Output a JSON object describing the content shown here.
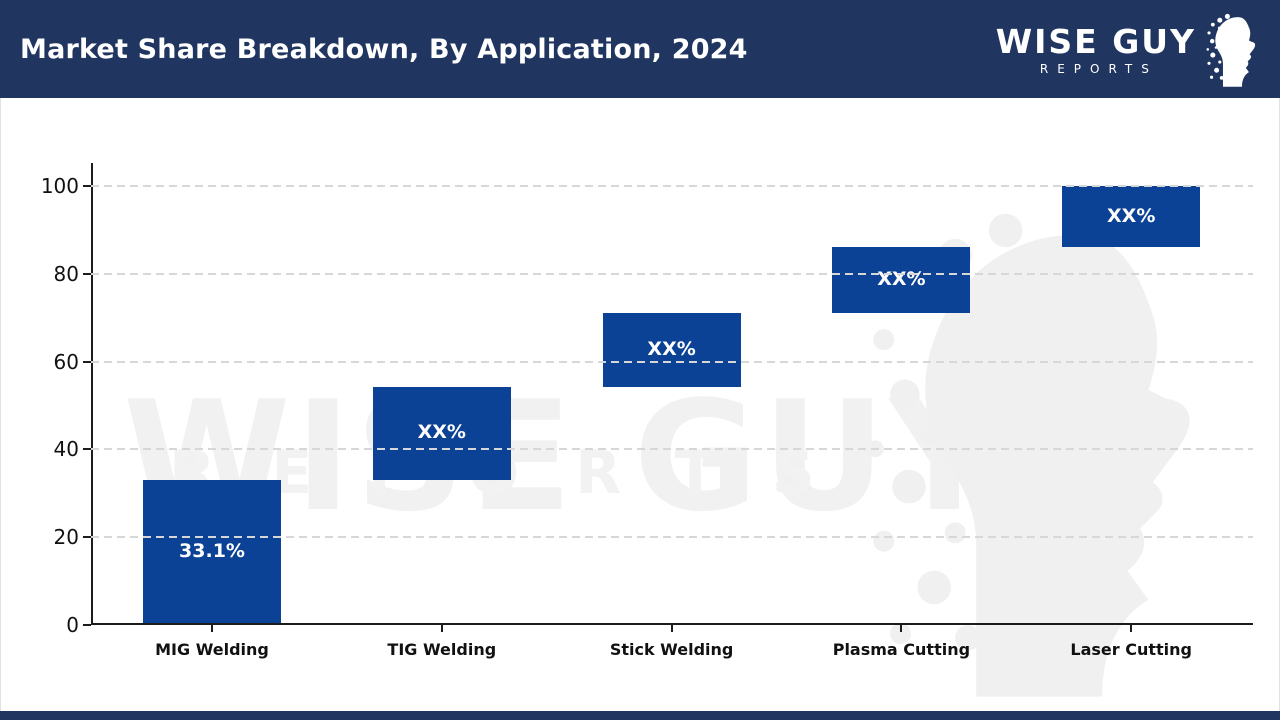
{
  "header": {
    "title": "Market Share Breakdown, By Application, 2024",
    "logo_line1": "WISE GUY",
    "logo_line2": "REPORTS",
    "bg_color": "#203560"
  },
  "watermark": {
    "line1": "WISE GUY",
    "line2": "REPORTS"
  },
  "chart_data": {
    "type": "bar",
    "subtype": "waterfall",
    "title": "Market Share Breakdown, By Application, 2024",
    "categories": [
      "MIG Welding",
      "TIG Welding",
      "Stick Welding",
      "Plasma Cutting",
      "Laser Cutting"
    ],
    "segments": [
      {
        "category": "MIG Welding",
        "start": 0,
        "end": 33.1,
        "label": "33.1%"
      },
      {
        "category": "TIG Welding",
        "start": 33.1,
        "end": 54.2,
        "label": "XX%"
      },
      {
        "category": "Stick Welding",
        "start": 54.2,
        "end": 71.1,
        "label": "XX%"
      },
      {
        "category": "Plasma Cutting",
        "start": 71.1,
        "end": 86.1,
        "label": "XX%"
      },
      {
        "category": "Laser Cutting",
        "start": 86.1,
        "end": 100,
        "label": "XX%"
      }
    ],
    "yticks": [
      0,
      20,
      40,
      60,
      80,
      100
    ],
    "ylim": [
      0,
      105
    ],
    "grid": "horizontal-dashed",
    "gridline_color": "#d7d7d7",
    "bar_color": "#0B4295",
    "bar_label_color": "#ffffff",
    "axis_color": "#1c1c1c",
    "legend": "none"
  }
}
